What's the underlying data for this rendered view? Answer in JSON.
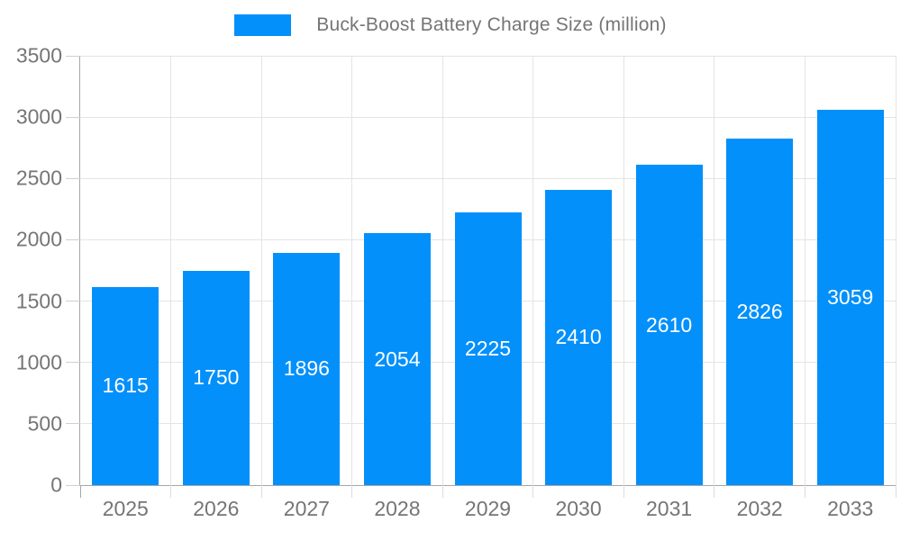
{
  "chart_data": {
    "type": "bar",
    "title": "Buck-Boost Battery Charge Size (million)",
    "legend": {
      "position": "top",
      "entries": [
        "Buck-Boost Battery Charge Size (million)"
      ]
    },
    "categories": [
      "2025",
      "2026",
      "2027",
      "2028",
      "2029",
      "2030",
      "2031",
      "2032",
      "2033"
    ],
    "series": [
      {
        "name": "Buck-Boost Battery Charge Size (million)",
        "values": [
          1615,
          1750,
          1896,
          2054,
          2225,
          2410,
          2610,
          2826,
          3059
        ]
      }
    ],
    "data_labels": [
      "1615",
      "1750",
      "1896",
      "2054",
      "2225",
      "2410",
      "2610",
      "2826",
      "3059"
    ],
    "xlabel": "",
    "ylabel": "",
    "ylim": [
      0,
      3500
    ],
    "yticks": [
      0,
      500,
      1000,
      1500,
      2000,
      2500,
      3000,
      3500
    ],
    "grid": true,
    "colors": {
      "bar": "#0390fa",
      "grid": "#e4e4e4",
      "axis": "#a6a6a6",
      "axis_text": "#757575",
      "value_label": "#ffffff",
      "background": "#ffffff"
    }
  }
}
